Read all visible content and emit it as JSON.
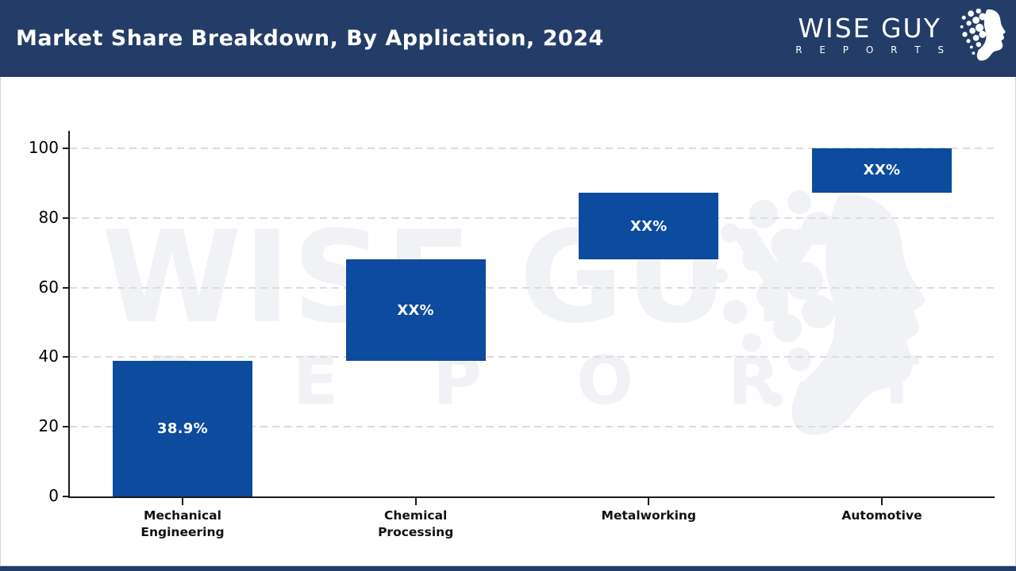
{
  "header": {
    "title": "Market Share Breakdown, By Application, 2024",
    "logo": {
      "line1": "WISE GUY",
      "line2": "R E P O R T S"
    }
  },
  "watermark": {
    "line1": "WISE GUY",
    "line2": "R E P O R T S"
  },
  "colors": {
    "header_bg": "#243c68",
    "footer_bg": "#243c68",
    "bar": "#0c4b9e",
    "grid": "#dcdcdc",
    "axis": "#1a1a1a",
    "watermark": "#f1f2f5",
    "bar_label_text": "#ffffff"
  },
  "chart_data": {
    "type": "bar",
    "subtype": "floating-stacked-breakdown",
    "title": "Market Share Breakdown, By Application, 2024",
    "xlabel": "",
    "ylabel": "",
    "categories": [
      [
        "Mechanical",
        "Engineering"
      ],
      [
        "Chemical",
        "Processing"
      ],
      [
        "Metalworking"
      ],
      [
        "Automotive"
      ]
    ],
    "segments": [
      {
        "start": 0,
        "end": 38.9,
        "label": "38.9%"
      },
      {
        "start": 38.9,
        "end": 68,
        "label": "XX%"
      },
      {
        "start": 68,
        "end": 87.3,
        "label": "XX%"
      },
      {
        "start": 87.3,
        "end": 100,
        "label": "XX%"
      }
    ],
    "yticks": [
      0,
      20,
      40,
      60,
      80,
      100
    ],
    "ylim": [
      0,
      105
    ],
    "grid": "dashed-horizontal",
    "legend": "none"
  }
}
